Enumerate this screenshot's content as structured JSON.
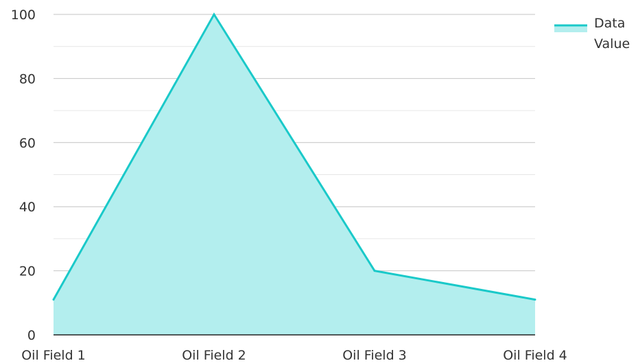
{
  "chart_data": {
    "type": "area",
    "categories": [
      "Oil Field 1",
      "Oil Field 2",
      "Oil Field 3",
      "Oil Field 4"
    ],
    "series": [
      {
        "name": "Data Value",
        "values": [
          11,
          100,
          20,
          11
        ],
        "line_color": "#1ac9c9",
        "fill_color": "#b3eeee"
      }
    ],
    "ylim": [
      0,
      100
    ],
    "yticks": [
      0,
      20,
      40,
      60,
      80,
      100
    ],
    "minor_grid_step": 10,
    "grid": true,
    "legend_position": "top-right",
    "title": "",
    "xlabel": "",
    "ylabel": "",
    "colors": {
      "major_grid": "#c4c4c4",
      "minor_grid": "#e6e6e6",
      "axis": "#222222",
      "text": "#333333"
    }
  }
}
